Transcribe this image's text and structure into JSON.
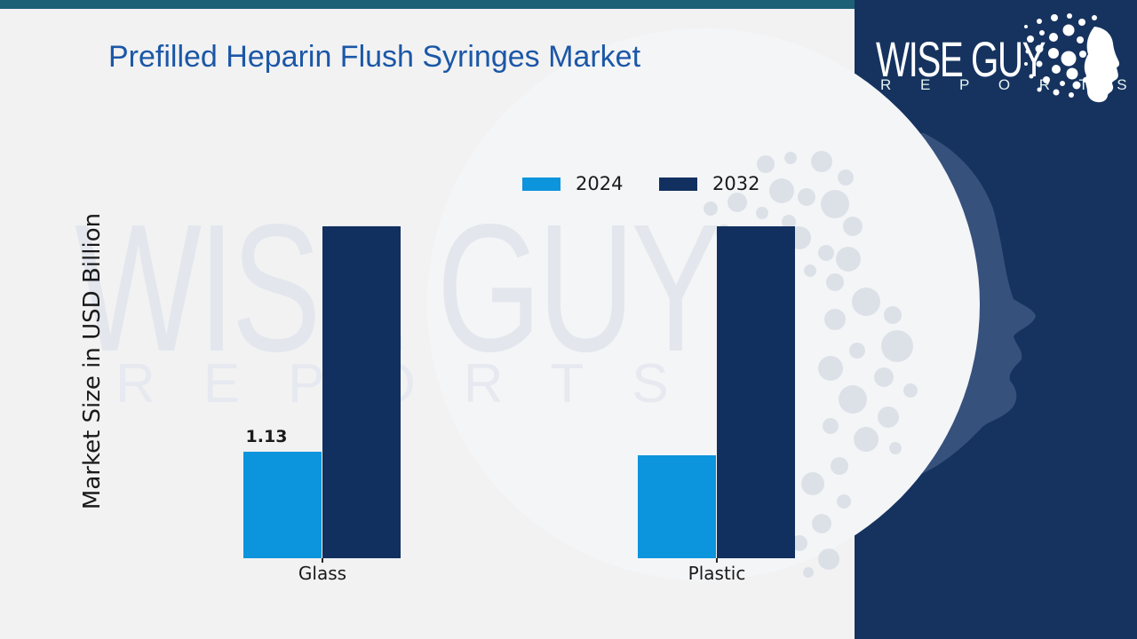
{
  "title": {
    "text": "Prefilled Heparin Flush Syringes Market",
    "color": "#1b57a6"
  },
  "chart_data": {
    "type": "bar",
    "title": "Prefilled Heparin Flush Syringes Market",
    "categories": [
      "Glass",
      "Plastic"
    ],
    "series": [
      {
        "name": "2024",
        "color": "#0c94dc",
        "values": [
          1.13,
          1.09
        ]
      },
      {
        "name": "2032",
        "color": "#11305f",
        "values": [
          3.52,
          3.52
        ]
      }
    ],
    "bar_labels": [
      {
        "series": "2024",
        "category": "Glass",
        "text": "1.13"
      }
    ],
    "xlabel": "",
    "ylabel": "Market Size in USD Billion",
    "ylim": [
      0,
      3.76
    ],
    "grid": false,
    "y_axis_ticks_visible": false,
    "legend_position": "top-center"
  },
  "branding": {
    "logo": {
      "line1": "WISE GUY",
      "line2": "R E P O R T S"
    },
    "watermark": {
      "line1": "WISE GUY",
      "line2": "REPORTS"
    },
    "colors": {
      "background": "#f2f2f3",
      "panel_navy": "#16335f",
      "bar_light_blue": "#0c94dc",
      "bar_dark_navy": "#11305f",
      "accent_teal_strip": "#1d6177",
      "face_silhouette_blue": "#37517d",
      "circle_fill": "#f4f5f7",
      "watermark_gray": "#e3e7ed",
      "title_blue": "#1b57a6"
    }
  }
}
